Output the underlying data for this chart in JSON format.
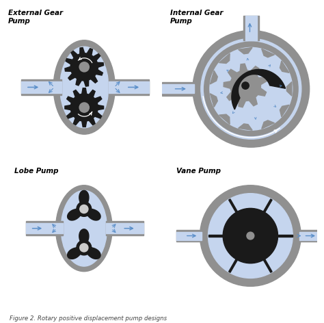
{
  "title": "Figure 2. Rotary positive displacement pump designs",
  "bg_color": "#ffffff",
  "gray": "#909090",
  "light_blue": "#c5d5ee",
  "blue_arrow": "#5b8fc9",
  "black": "#1a1a1a",
  "white": "#ffffff",
  "labels": {
    "ext_gear": "External Gear\nPump",
    "int_gear": "Internal Gear\nPump",
    "lobe": "Lobe Pump",
    "vane": "Vane Pump"
  },
  "caption": "Figure 2. Rotary positive displacement pump designs"
}
